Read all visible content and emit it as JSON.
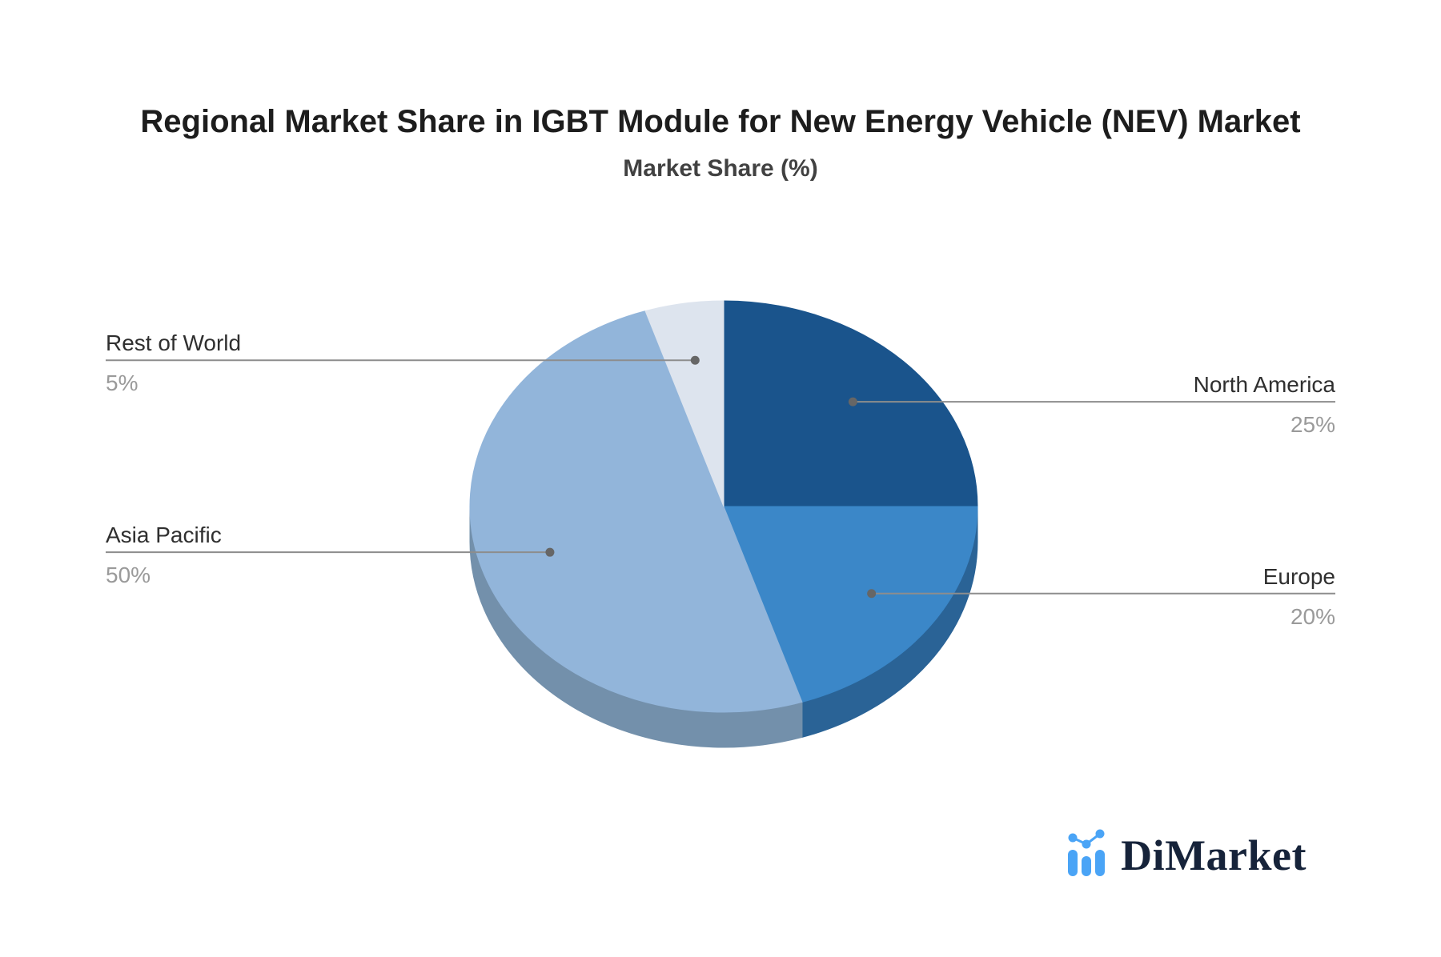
{
  "title": "Regional Market Share in IGBT Module for New Energy Vehicle (NEV) Market",
  "subtitle": "Market Share (%)",
  "chart_data": {
    "type": "pie",
    "title": "Regional Market Share in IGBT Module for New Energy Vehicle (NEV) Market",
    "subtitle": "Market Share (%)",
    "unit": "%",
    "effect_3d": true,
    "direction": "clockwise",
    "start_angle_deg": 0,
    "slices": [
      {
        "label": "North America",
        "value": 25,
        "pct_label": "25%",
        "color": "#1a548c",
        "side_color": "#15436f"
      },
      {
        "label": "Europe",
        "value": 20,
        "pct_label": "20%",
        "color": "#3b87c8",
        "side_color": "#2a6396"
      },
      {
        "label": "Asia Pacific",
        "value": 50,
        "pct_label": "50%",
        "color": "#92b5da",
        "side_color": "#7390ab"
      },
      {
        "label": "Rest of World",
        "value": 5,
        "pct_label": "5%",
        "color": "#dde4ee",
        "side_color": "#b8c3d4"
      }
    ],
    "legend_style": "connector-labels",
    "label_text_color": "#2f2f2f",
    "pct_text_color": "#9a9a9a",
    "connector_color": "#8d8d8d",
    "connector_dot_color": "#666666"
  },
  "branding": {
    "logo_text": "DiMarket",
    "logo_text_color": "#16233a",
    "logo_icon": "bar-line-chart-icon",
    "logo_icon_color": "#4aa4f6"
  }
}
